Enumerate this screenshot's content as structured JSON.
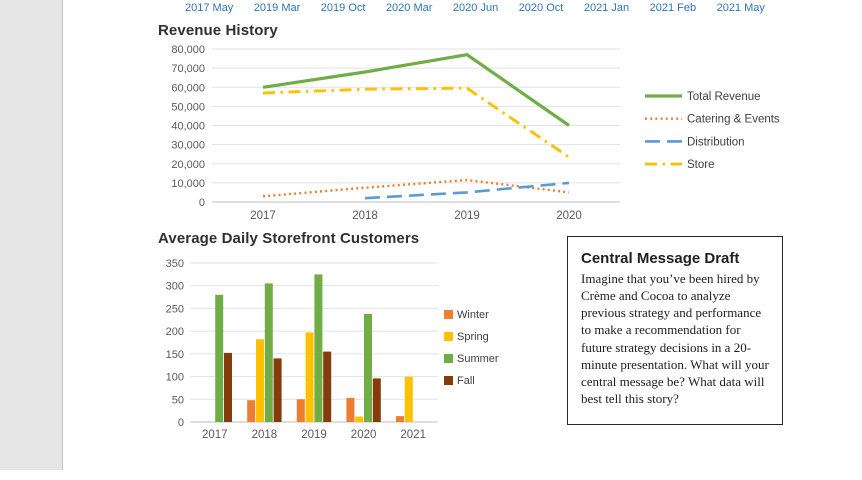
{
  "page": {
    "background_color": "#ffffff",
    "left_margin_color": "#e6e6e6"
  },
  "link_row": {
    "color": "#2E75B6",
    "items": [
      "2017 May",
      "2019 Mar",
      "2019 Oct",
      "2020 Mar",
      "2020 Jun",
      "2020 Oct",
      "2021 Jan",
      "2021 Feb",
      "2021 May"
    ]
  },
  "chart_data": [
    {
      "type": "line",
      "title": "Revenue History",
      "x": [
        "2017",
        "2018",
        "2019",
        "2020"
      ],
      "series": [
        {
          "name": "Total Revenue",
          "values": [
            60000,
            68000,
            77000,
            40000
          ],
          "color": "#70AD47",
          "style": "solid"
        },
        {
          "name": "Catering & Events",
          "values": [
            3000,
            7500,
            11500,
            5000
          ],
          "color": "#ED7D31",
          "style": "dotted"
        },
        {
          "name": "Distribution",
          "values": [
            null,
            2000,
            5000,
            10000
          ],
          "color": "#5B9BD5",
          "style": "dashed"
        },
        {
          "name": "Store",
          "values": [
            57000,
            59000,
            59500,
            23500
          ],
          "color": "#FFC000",
          "style": "dashdot"
        }
      ],
      "ylim": [
        0,
        80000
      ],
      "ytick_step": 10000,
      "ytick_format": "thousands-comma",
      "grid": true,
      "legend_position": "right"
    },
    {
      "type": "bar",
      "title": "Average Daily Storefront Customers",
      "categories": [
        "2017",
        "2018",
        "2019",
        "2020",
        "2021"
      ],
      "series": [
        {
          "name": "Winter",
          "values": [
            0,
            48,
            50,
            53,
            13
          ],
          "color": "#ED7D31"
        },
        {
          "name": "Spring",
          "values": [
            0,
            182,
            197,
            12,
            100
          ],
          "color": "#FFC000"
        },
        {
          "name": "Summer",
          "values": [
            280,
            305,
            325,
            238,
            0
          ],
          "color": "#70AD47"
        },
        {
          "name": "Fall",
          "values": [
            152,
            140,
            155,
            96,
            0
          ],
          "color": "#843C0C"
        }
      ],
      "ylim": [
        0,
        350
      ],
      "ytick_step": 50,
      "grid": true,
      "legend_position": "right"
    }
  ],
  "message_box": {
    "title": "Central Message Draft",
    "body": "Imagine that you’ve been hired by Crème and Cocoa to analyze previous strategy and performance to make a recommendation for future strategy decisions in a 20-minute presentation. What will your central message be? What data will best tell this story?"
  },
  "style": {
    "axis_text_color": "#595959",
    "legend_text_color": "#404040",
    "gridline_color": "#e2e2e2",
    "axis_line_color": "#bfbfbf"
  }
}
